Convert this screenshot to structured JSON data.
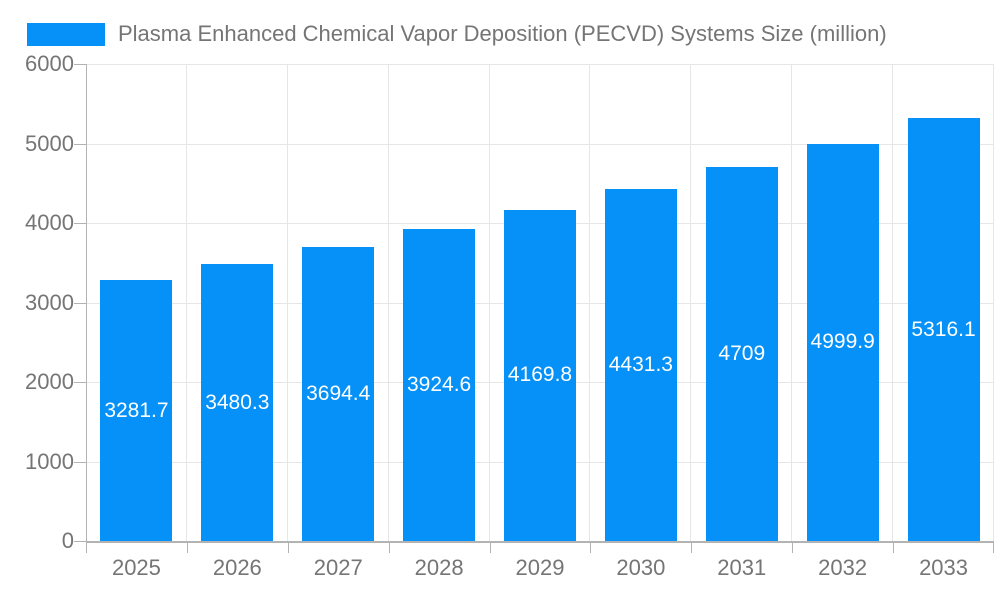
{
  "chart_data": {
    "type": "bar",
    "title": "Plasma Enhanced Chemical Vapor Deposition (PECVD) Systems Size (million)",
    "categories": [
      "2025",
      "2026",
      "2027",
      "2028",
      "2029",
      "2030",
      "2031",
      "2032",
      "2033"
    ],
    "values": [
      3281.7,
      3480.3,
      3694.4,
      3924.6,
      4169.8,
      4431.3,
      4709,
      4999.9,
      5316.1
    ],
    "value_labels": [
      "3281.7",
      "3480.3",
      "3694.4",
      "3924.6",
      "4169.8",
      "4431.3",
      "4709",
      "4999.9",
      "5316.1"
    ],
    "xlabel": "",
    "ylabel": "",
    "ylim": [
      0,
      6000
    ],
    "yticks": [
      0,
      1000,
      2000,
      3000,
      4000,
      5000,
      6000
    ],
    "ytick_labels": [
      "0",
      "1000",
      "2000",
      "3000",
      "4000",
      "5000",
      "6000"
    ],
    "grid": true,
    "legend_position": "top-left",
    "bar_color": "#0591f8",
    "colors": {
      "text": "#757575",
      "grid": "#e6e6e6",
      "axis": "#b3b3b3",
      "bar_label": "#ffffff"
    }
  }
}
